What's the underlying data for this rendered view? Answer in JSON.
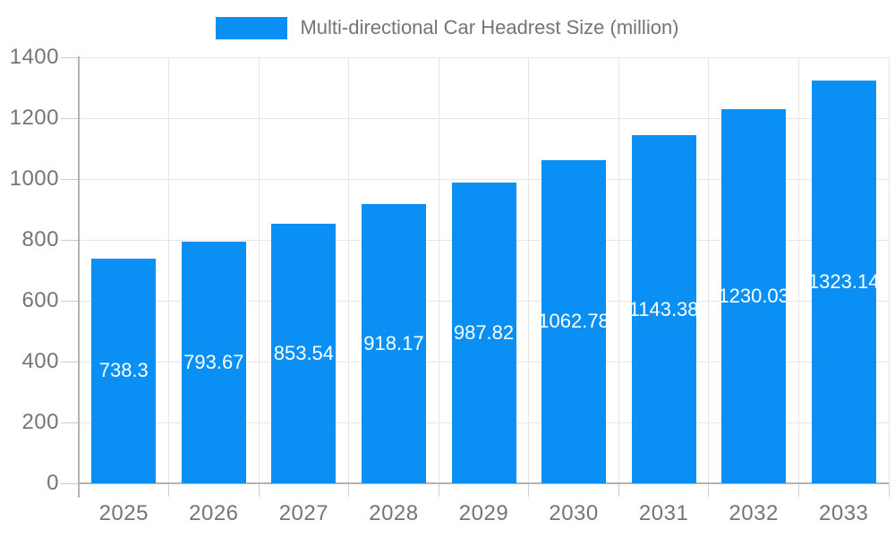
{
  "legend": {
    "label": "Multi-directional Car Headrest Size (million)"
  },
  "chart_data": {
    "type": "bar",
    "title": "Multi-directional Car Headrest Size (million)",
    "xlabel": "",
    "ylabel": "",
    "categories": [
      "2025",
      "2026",
      "2027",
      "2028",
      "2029",
      "2030",
      "2031",
      "2032",
      "2033"
    ],
    "values": [
      738.3,
      793.67,
      853.54,
      918.17,
      987.82,
      1062.78,
      1143.38,
      1230.03,
      1323.14
    ],
    "value_labels": [
      "738.3",
      "793.67",
      "853.54",
      "918.17",
      "987.82",
      "1062.78",
      "1143.38",
      "1230.03",
      "1323.14"
    ],
    "ylim": [
      0,
      1400
    ],
    "yticks": [
      0,
      200,
      400,
      600,
      800,
      1000,
      1200,
      1400
    ],
    "grid": true,
    "legend_position": "top-center",
    "colors": {
      "bar": "#0A8FF5",
      "value_label": "#ffffff",
      "axis_text": "#757575",
      "gridline": "#e6e6e6",
      "axis_line": "#b3b3b3",
      "tick": "#cccccc",
      "background": "#ffffff"
    }
  }
}
